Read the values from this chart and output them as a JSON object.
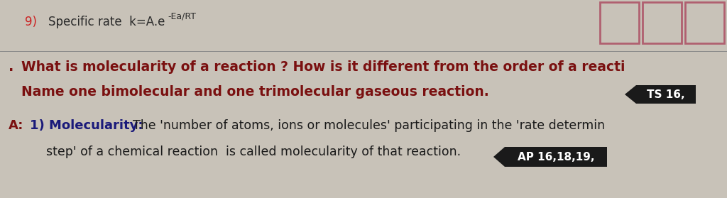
{
  "bg_color": "#c8c2b8",
  "line1_number": "9)",
  "line1_main": "Specific rate  k=A.e",
  "line1_sup": "-Ea/RT",
  "question_dot": ".",
  "question_line1": "What is molecularity of a reaction ? How is it different from the order of a reacti",
  "question_line2": "Name one bimolecular and one trimolecular gaseous reaction.",
  "answer_label": "A:",
  "answer_line1_bold": "1) Molecularity:",
  "answer_line1_rest": "The 'number of atoms, ions or molecules' participating in the 'rate determin",
  "answer_line2": "step' of a chemical reaction  is called molecularity of that reaction.",
  "ts_label": "TS 16,",
  "ap_label": "AP 16,18,19,",
  "number_color": "#cc2222",
  "line1_color": "#2a2a2a",
  "sep_color": "#888888",
  "question_color": "#7a1010",
  "answer_label_color": "#7a1010",
  "bold_color": "#1a1a7a",
  "normal_color": "#1a1a1a",
  "box_edge_color": "#b06070",
  "badge_bg": "#1a1a1a",
  "badge_text": "#ffffff",
  "box_fill": "#c8c2b8"
}
